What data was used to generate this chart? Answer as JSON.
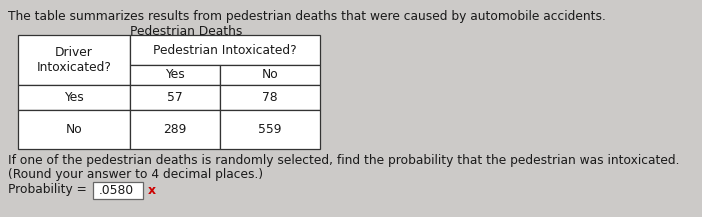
{
  "title_text": "The table summarizes results from pedestrian deaths that were caused by automobile accidents.",
  "table_title": "Pedestrian Deaths",
  "footer_line1": "If one of the pedestrian deaths is randomly selected, find the probability that the pedestrian was intoxicated.",
  "footer_line2": "(Round your answer to 4 decimal places.)",
  "prob_label": "Probability = ",
  "prob_value": ".0580",
  "x_mark": "x",
  "bg_color": "#cccac8",
  "text_color": "#1a1a1a",
  "x_color": "#cc0000",
  "cell_bg": "#ffffff",
  "border_color": "#333333"
}
